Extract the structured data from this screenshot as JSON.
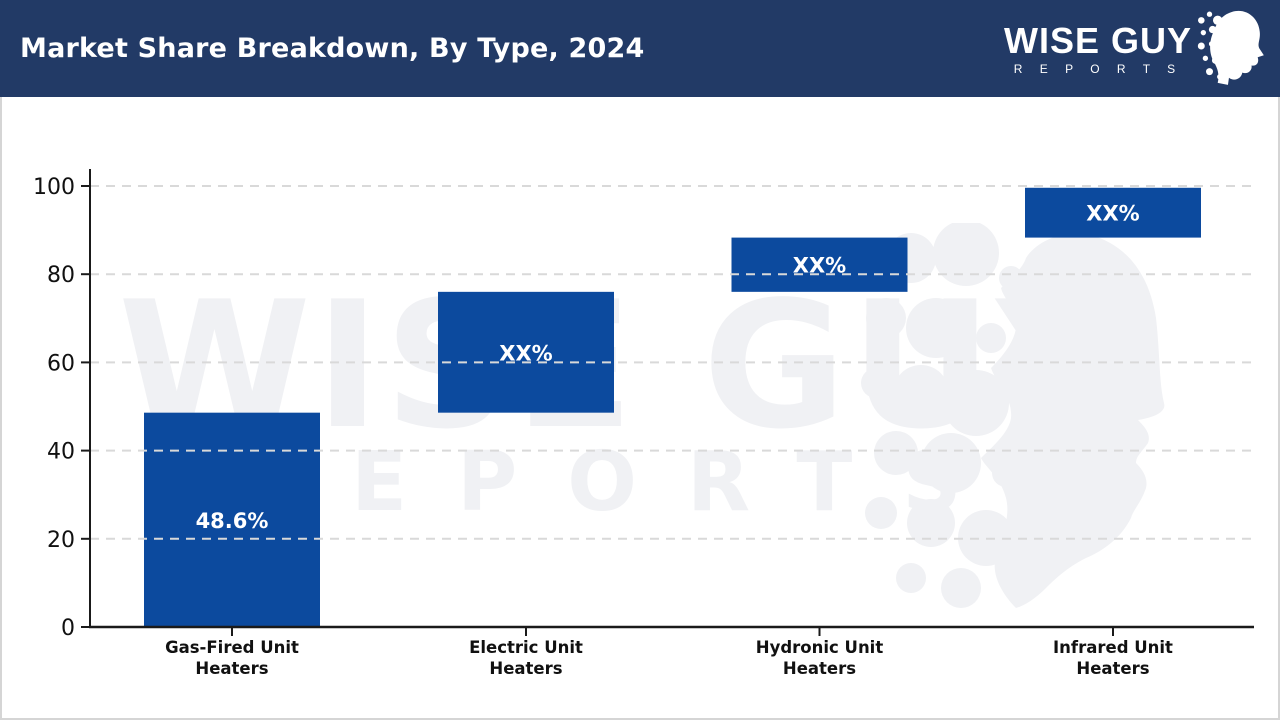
{
  "header": {
    "title": "Market Share Breakdown, By Type, 2024",
    "logo": {
      "line1": "WISE GUY",
      "line2": "R E P O R T S"
    }
  },
  "watermark": {
    "line1": "WISE GUY",
    "line2": "REPORTS"
  },
  "chart_data": {
    "type": "bar",
    "subtype": "waterfall",
    "title": "Market Share Breakdown, By Type, 2024",
    "categories": [
      [
        "Gas-Fired Unit",
        "Heaters"
      ],
      [
        "Electric Unit",
        "Heaters"
      ],
      [
        "Hydronic Unit",
        "Heaters"
      ],
      [
        "Infrared Unit",
        "Heaters"
      ]
    ],
    "segments": [
      {
        "category": "Gas-Fired Unit Heaters",
        "start": 0,
        "end": 48.6,
        "label": "48.6%"
      },
      {
        "category": "Electric Unit Heaters",
        "start": 48.6,
        "end": 76.0,
        "label": "XX%"
      },
      {
        "category": "Hydronic Unit Heaters",
        "start": 76.0,
        "end": 88.3,
        "label": "XX%"
      },
      {
        "category": "Infrared Unit Heaters",
        "start": 88.3,
        "end": 99.6,
        "label": "XX%"
      }
    ],
    "xlabel": "",
    "ylabel": "",
    "yticks": [
      0,
      20,
      40,
      60,
      80,
      100
    ],
    "ylim": [
      0,
      105
    ],
    "grid": "horizontal-dashed",
    "legend": "none",
    "bar_color": "#0c4a9e",
    "value_label_color": "#ffffff",
    "axis_color": "#1a1a1a",
    "gridline_color": "#d9d9d9"
  }
}
